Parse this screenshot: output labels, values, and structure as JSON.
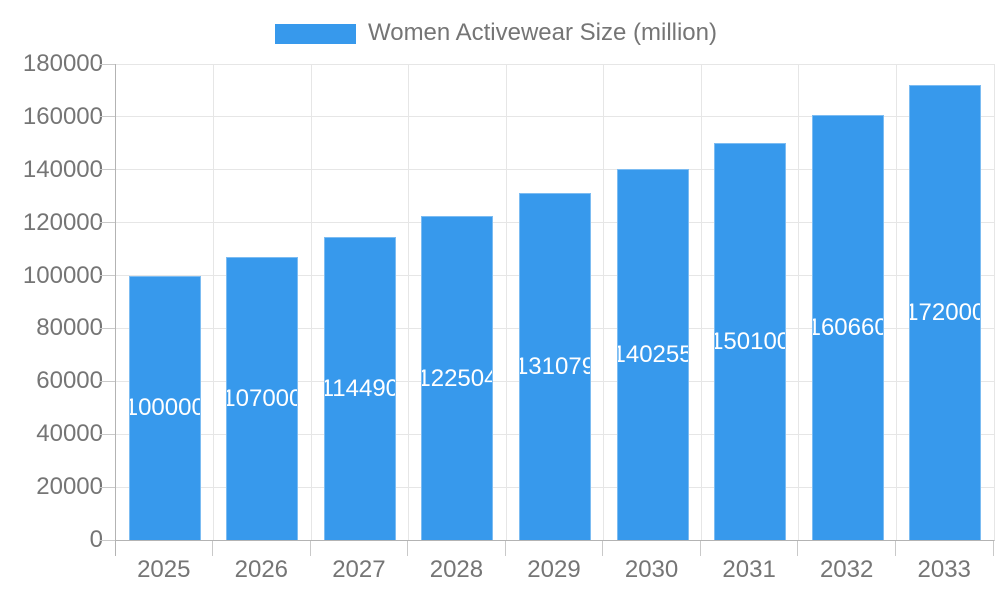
{
  "legend": {
    "label": "Women Activewear Size (million)",
    "swatch_color": "#3799EC"
  },
  "chart_data": {
    "type": "bar",
    "title": "",
    "xlabel": "",
    "ylabel": "",
    "categories": [
      "2025",
      "2026",
      "2027",
      "2028",
      "2029",
      "2030",
      "2031",
      "2032",
      "2033"
    ],
    "series": [
      {
        "name": "Women Activewear Size (million)",
        "values": [
          100000,
          107000,
          114490,
          122504,
          131079,
          140255,
          150100,
          160660,
          172000
        ]
      }
    ],
    "value_labels": [
      "100000",
      "107000",
      "114490",
      "122504",
      "131079",
      "140255",
      "150100",
      "160660",
      "172000"
    ],
    "value_labels_position": "inside-center",
    "ylim": [
      0,
      180000
    ],
    "yticks": [
      0,
      20000,
      40000,
      60000,
      80000,
      100000,
      120000,
      140000,
      160000,
      180000
    ],
    "grid": "horizontal-and-vertical",
    "legend_position": "top-center",
    "colors": {
      "bar": "#3799EC",
      "value_label": "#FFFFFF",
      "axis_text": "#757575",
      "gridline": "#E6E6E6",
      "axis_line": "#B3B3B3",
      "tick": "#C9C9C9",
      "background": "#FFFFFF"
    }
  }
}
